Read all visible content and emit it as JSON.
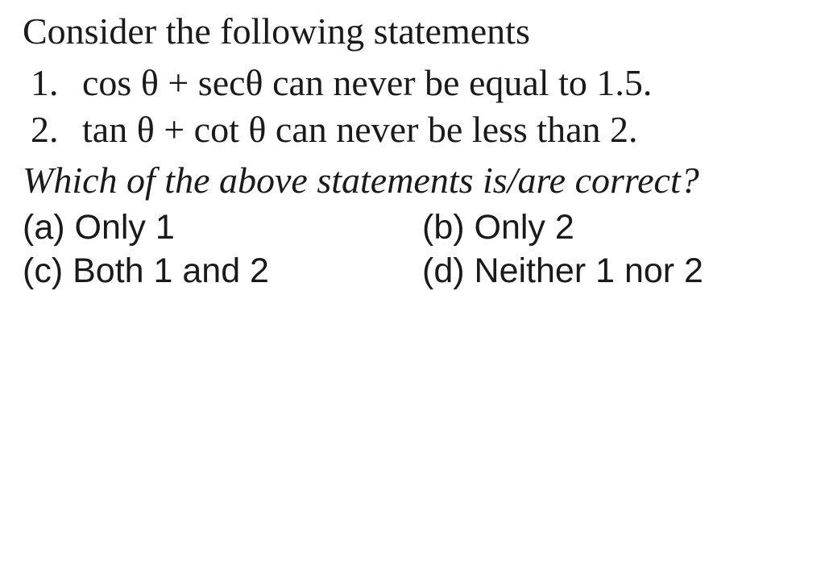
{
  "colors": {
    "background": "#ffffff",
    "text": "#1a1a1a"
  },
  "typography": {
    "serif_family": "Georgia / Times New Roman",
    "sans_family": "Arial / Helvetica",
    "stem_size_pt": 34,
    "options_size_pt": 32
  },
  "stem": "Consider the following statements",
  "statements": [
    {
      "num": "1.",
      "text": "cos θ + secθ can never be equal to 1.5."
    },
    {
      "num": "2.",
      "text": "tan θ + cot θ can never be less than 2."
    }
  ],
  "which_line": "Which of the above statements is/are correct?",
  "options": {
    "a": {
      "label": "(a)",
      "text": "Only 1"
    },
    "b": {
      "label": "(b)",
      "text": "Only 2"
    },
    "c": {
      "label": "(c)",
      "text": "Both 1 and 2"
    },
    "d": {
      "label": "(d)",
      "text": "Neither 1 nor 2"
    }
  }
}
